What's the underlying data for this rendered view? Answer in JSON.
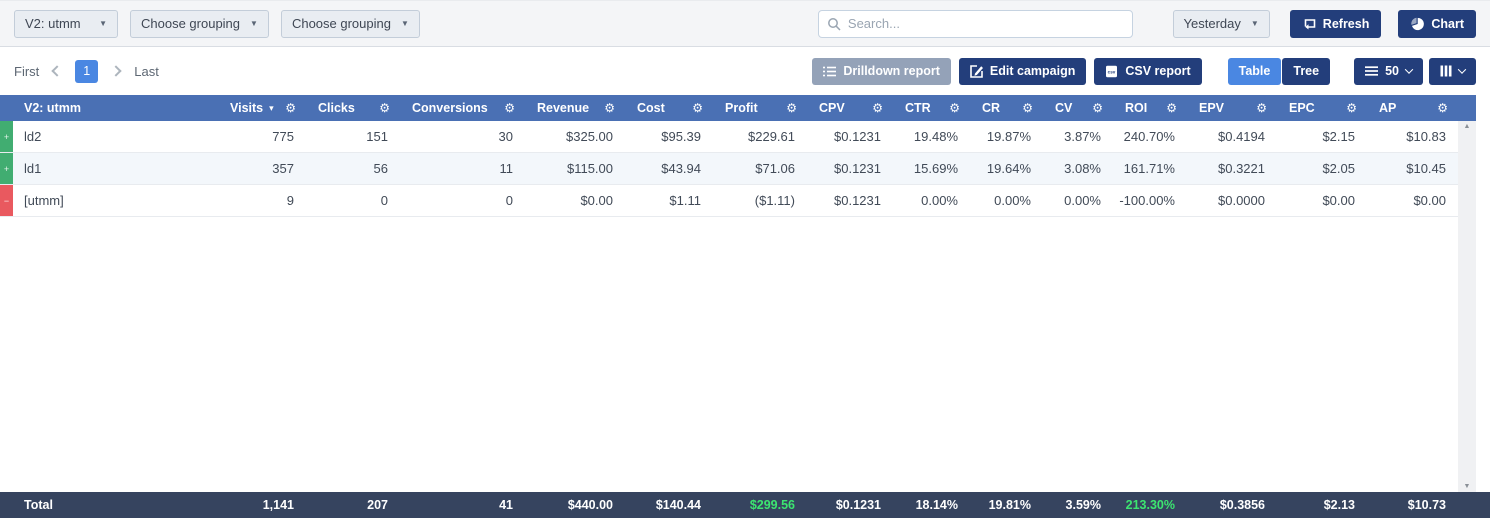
{
  "toolbar": {
    "filters": [
      {
        "label": "V2: utmm"
      },
      {
        "label": "Choose grouping"
      },
      {
        "label": "Choose grouping"
      }
    ],
    "search_placeholder": "Search...",
    "date_range": "Yesterday",
    "refresh_label": "Refresh",
    "chart_label": "Chart"
  },
  "pagination": {
    "first": "First",
    "current_page": "1",
    "last": "Last"
  },
  "actions": {
    "drilldown": "Drilldown report",
    "edit_campaign": "Edit campaign",
    "csv_report": "CSV report",
    "table_view": "Table",
    "tree_view": "Tree",
    "page_size": "50"
  },
  "icons": [
    "search-icon",
    "refresh-icon",
    "pie-chart-icon",
    "list-icon",
    "edit-icon",
    "csv-file-icon",
    "rows-icon",
    "columns-icon",
    "gear-icon",
    "chevron-down-icon",
    "chevron-left-icon",
    "chevron-right-icon",
    "scroll-up-icon",
    "scroll-down-icon",
    "plus-indicator",
    "minus-indicator",
    "sort-desc-icon"
  ],
  "colors": {
    "navy_button": "#233e7b",
    "bright_blue": "#4a87e2",
    "muted_button": "#94a2b8",
    "header_blue": "#4a70b4",
    "total_bg": "#36445f",
    "positive_indicator": "#41ad71",
    "negative_indicator": "#e9595f",
    "green_text": "#2da266",
    "red_text": "#f2555c",
    "total_green_text": "#3ce570"
  },
  "table": {
    "columns": [
      {
        "label": "V2: utmm",
        "gear": false
      },
      {
        "label": "Visits",
        "gear": true,
        "sorted": "desc"
      },
      {
        "label": "Clicks",
        "gear": true
      },
      {
        "label": "Conversions",
        "gear": true
      },
      {
        "label": "Revenue",
        "gear": true
      },
      {
        "label": "Cost",
        "gear": true
      },
      {
        "label": "Profit",
        "gear": true
      },
      {
        "label": "CPV",
        "gear": true
      },
      {
        "label": "CTR",
        "gear": true
      },
      {
        "label": "CR",
        "gear": true
      },
      {
        "label": "CV",
        "gear": true
      },
      {
        "label": "ROI",
        "gear": true
      },
      {
        "label": "EPV",
        "gear": true
      },
      {
        "label": "EPC",
        "gear": true
      },
      {
        "label": "AP",
        "gear": true
      }
    ],
    "indicator_symbols": {
      "positive": "+",
      "negative": "−"
    },
    "rows": [
      {
        "label": "ld2",
        "indicator": "positive",
        "values": [
          {
            "t": "775"
          },
          {
            "t": "151"
          },
          {
            "t": "30"
          },
          {
            "t": "$325.00"
          },
          {
            "t": "$95.39"
          },
          {
            "t": "$229.61",
            "tone": "green"
          },
          {
            "t": "$0.1231"
          },
          {
            "t": "19.48%"
          },
          {
            "t": "19.87%"
          },
          {
            "t": "3.87%"
          },
          {
            "t": "240.70%",
            "tone": "green"
          },
          {
            "t": "$0.4194"
          },
          {
            "t": "$2.15"
          },
          {
            "t": "$10.83"
          }
        ]
      },
      {
        "label": "ld1",
        "indicator": "positive",
        "values": [
          {
            "t": "357"
          },
          {
            "t": "56"
          },
          {
            "t": "11"
          },
          {
            "t": "$115.00"
          },
          {
            "t": "$43.94"
          },
          {
            "t": "$71.06",
            "tone": "green"
          },
          {
            "t": "$0.1231"
          },
          {
            "t": "15.69%"
          },
          {
            "t": "19.64%"
          },
          {
            "t": "3.08%"
          },
          {
            "t": "161.71%",
            "tone": "green"
          },
          {
            "t": "$0.3221"
          },
          {
            "t": "$2.05"
          },
          {
            "t": "$10.45"
          }
        ]
      },
      {
        "label": "[utmm]",
        "indicator": "negative",
        "values": [
          {
            "t": "9"
          },
          {
            "t": "0"
          },
          {
            "t": "0"
          },
          {
            "t": "$0.00"
          },
          {
            "t": "$1.11"
          },
          {
            "t": "($1.11)",
            "tone": "red"
          },
          {
            "t": "$0.1231"
          },
          {
            "t": "0.00%"
          },
          {
            "t": "0.00%"
          },
          {
            "t": "0.00%"
          },
          {
            "t": "-100.00%",
            "tone": "red"
          },
          {
            "t": "$0.0000"
          },
          {
            "t": "$0.00"
          },
          {
            "t": "$0.00"
          }
        ]
      }
    ],
    "total": {
      "label": "Total",
      "values": [
        {
          "t": "1,141"
        },
        {
          "t": "207"
        },
        {
          "t": "41"
        },
        {
          "t": "$440.00"
        },
        {
          "t": "$140.44"
        },
        {
          "t": "$299.56",
          "tone": "green"
        },
        {
          "t": "$0.1231"
        },
        {
          "t": "18.14%"
        },
        {
          "t": "19.81%"
        },
        {
          "t": "3.59%"
        },
        {
          "t": "213.30%",
          "tone": "green"
        },
        {
          "t": "$0.3856"
        },
        {
          "t": "$2.13"
        },
        {
          "t": "$10.73"
        }
      ]
    }
  }
}
